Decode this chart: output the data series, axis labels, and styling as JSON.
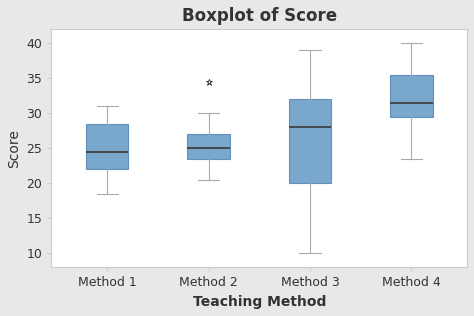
{
  "title": "Boxplot of Score",
  "xlabel": "Teaching Method",
  "ylabel": "Score",
  "categories": [
    "Method 1",
    "Method 2",
    "Method 3",
    "Method 4"
  ],
  "box_data": [
    {
      "whislo": 18.5,
      "q1": 22.0,
      "med": 24.5,
      "q3": 28.5,
      "whishi": 31.0,
      "fliers": []
    },
    {
      "whislo": 20.5,
      "q1": 23.5,
      "med": 25.0,
      "q3": 27.0,
      "whishi": 30.0,
      "fliers": [
        34.5
      ]
    },
    {
      "whislo": 10.0,
      "q1": 20.0,
      "med": 28.0,
      "q3": 32.0,
      "whishi": 39.0,
      "fliers": []
    },
    {
      "whislo": 23.5,
      "q1": 29.5,
      "med": 31.5,
      "q3": 35.5,
      "whishi": 40.0,
      "fliers": []
    }
  ],
  "ylim": [
    8,
    42
  ],
  "yticks": [
    10,
    15,
    20,
    25,
    30,
    35,
    40
  ],
  "box_color": "#7aa7cc",
  "box_edge_color": "#6090bb",
  "median_color": "#3a3a3a",
  "whisker_color": "#aaaaaa",
  "cap_color": "#aaaaaa",
  "flier_color": "#555555",
  "background_color": "#e8e8e8",
  "plot_bg_color": "#ffffff",
  "title_fontsize": 12,
  "label_fontsize": 10,
  "tick_fontsize": 9,
  "box_width": 0.42
}
